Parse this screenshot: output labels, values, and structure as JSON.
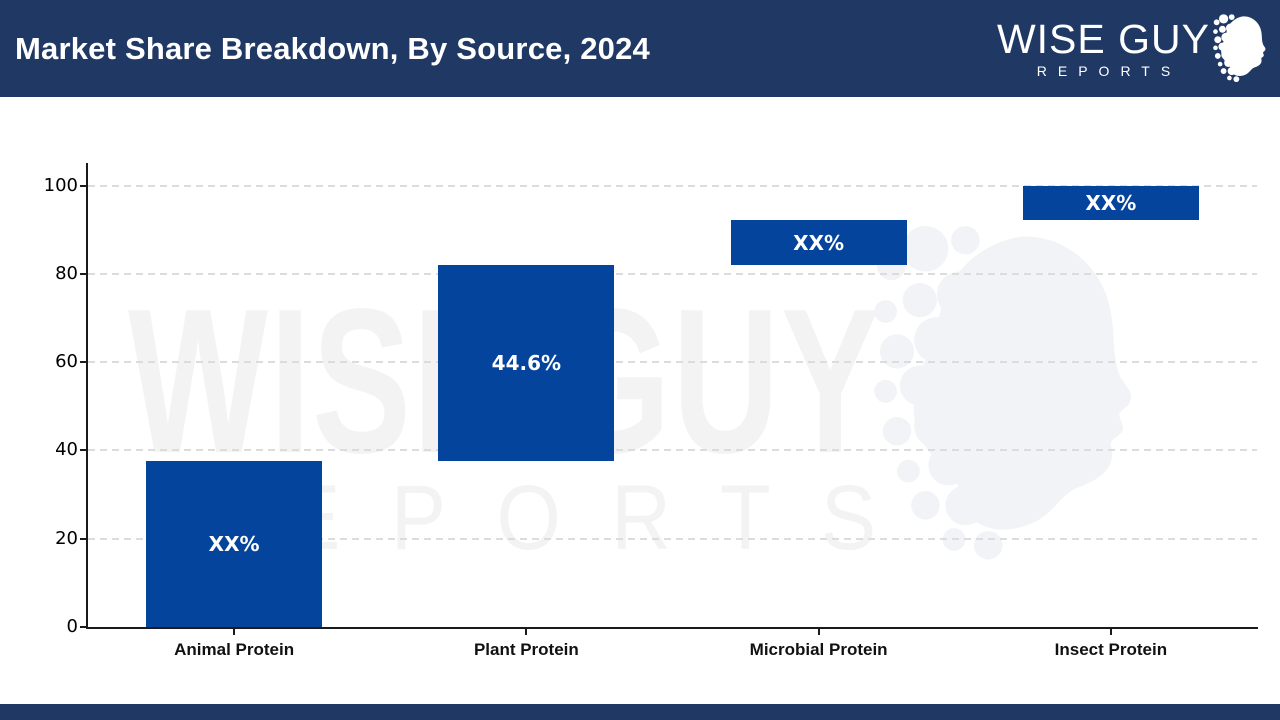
{
  "header": {
    "title": "Market Share Breakdown, By Source, 2024",
    "bg_color": "#1f3864",
    "logo": {
      "line1": "WISE GUY",
      "line2": "REPORTS"
    }
  },
  "watermark": {
    "line1": "WISE GUY",
    "line2": "REPORTS"
  },
  "footer": {
    "bg_color": "#1f3864"
  },
  "chart_data": {
    "type": "bar",
    "subtype": "waterfall",
    "title": "Market Share Breakdown, By Source, 2024",
    "categories": [
      "Animal Protein",
      "Plant Protein",
      "Microbial Protein",
      "Insect Protein"
    ],
    "bars": [
      {
        "category": "Animal Protein",
        "start": 0,
        "end": 37.5,
        "label": "XX%"
      },
      {
        "category": "Plant Protein",
        "start": 37.5,
        "end": 82.1,
        "label": "44.6%"
      },
      {
        "category": "Microbial Protein",
        "start": 82.1,
        "end": 92.1,
        "label": "XX%"
      },
      {
        "category": "Insect Protein",
        "start": 92.1,
        "end": 100,
        "label": "XX%"
      }
    ],
    "yticks": [
      0,
      20,
      40,
      60,
      80,
      100
    ],
    "ylim": [
      0,
      105
    ],
    "ylabel": "",
    "xlabel": "",
    "bar_color": "#04449c",
    "grid": "dashed-horizontal",
    "legend": null
  }
}
